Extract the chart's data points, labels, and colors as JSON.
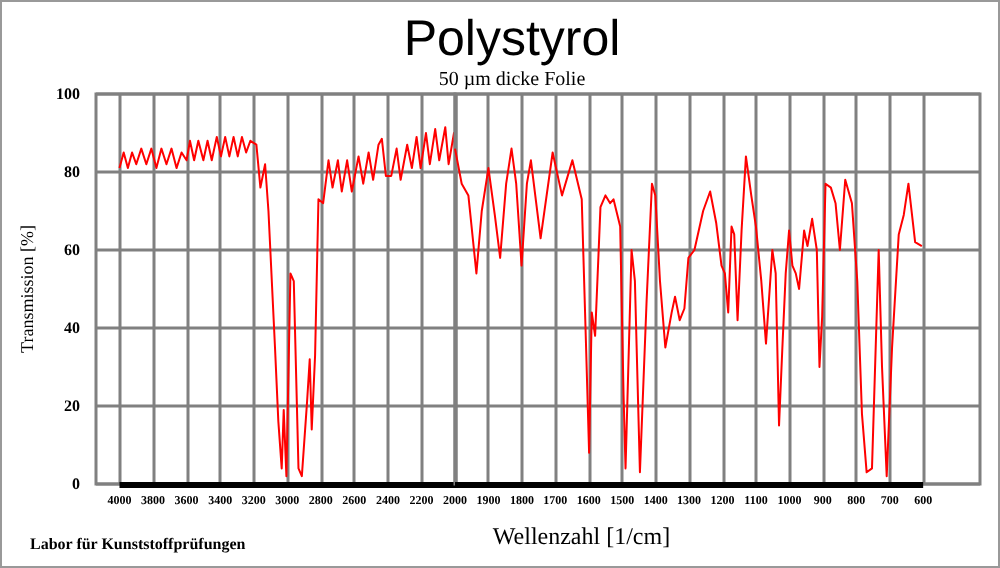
{
  "chart_data": [
    {
      "type": "line",
      "title": "Polystyrol",
      "ylabel": "Transmission [%]",
      "annotations": [
        "Labor für Kunststoffprüfungen"
      ],
      "xlim": [
        4140,
        2000
      ],
      "xticks": [
        4000,
        3800,
        3600,
        3400,
        3200,
        3000,
        2800,
        2600,
        2400,
        2200,
        2000
      ],
      "ylim": [
        0,
        100
      ],
      "yticks": [
        0,
        20,
        40,
        60,
        80,
        100
      ],
      "grid": true,
      "marker": "none",
      "line_style": "solid",
      "series": [
        {
          "color": "#ff0000",
          "x": [
            4000,
            3975,
            3950,
            3925,
            3900,
            3870,
            3840,
            3810,
            3780,
            3750,
            3720,
            3690,
            3660,
            3630,
            3600,
            3580,
            3555,
            3530,
            3500,
            3475,
            3450,
            3420,
            3395,
            3370,
            3345,
            3320,
            3295,
            3270,
            3245,
            3220,
            3184,
            3160,
            3132,
            3112,
            3073,
            3053,
            3033,
            3021,
            3005,
            2981,
            2961,
            2933,
            2913,
            2882,
            2866,
            2854,
            2834,
            2814,
            2786,
            2754,
            2730,
            2698,
            2675,
            2643,
            2615,
            2575,
            2547,
            2515,
            2488,
            2456,
            2436,
            2412,
            2380,
            2348,
            2324,
            2285,
            2257,
            2229,
            2205,
            2173,
            2150,
            2118,
            2094,
            2058,
            2038,
            2006,
            2000
          ],
          "values": [
            81,
            85,
            81,
            85,
            82,
            86,
            82,
            86,
            81,
            86,
            82,
            86,
            81,
            85,
            83,
            88,
            83,
            88,
            83,
            88,
            83,
            89,
            84,
            89,
            84,
            89,
            84,
            89,
            85,
            88,
            87,
            76,
            82,
            70,
            35,
            16,
            4,
            19,
            2,
            54,
            52,
            4,
            2,
            21,
            32,
            14,
            33,
            73,
            72,
            83,
            76,
            83,
            75,
            83,
            75,
            84,
            77,
            85,
            78,
            87,
            88.5,
            79,
            79,
            86,
            78,
            87,
            81,
            89,
            81,
            90,
            82,
            91,
            83,
            91.5,
            82,
            90,
            86
          ]
        }
      ]
    },
    {
      "type": "line",
      "subtitle": "50 µm dicke Folie",
      "xlabel": "Wellenzahl [1/cm]",
      "tick_labels": "x",
      "xlim": [
        2000,
        430
      ],
      "xticks": [
        {
          "value": 2000,
          "label": null
        },
        1900,
        1800,
        1700,
        1600,
        1500,
        1400,
        1300,
        1200,
        1100,
        1000,
        900,
        800,
        700,
        600
      ],
      "ylim": [
        0,
        100
      ],
      "yticks": [
        0,
        20,
        40,
        60,
        80,
        100
      ],
      "grid": true,
      "marker": "none",
      "line_style": "solid",
      "series": [
        {
          "color": "#ff0000",
          "x": [
            2000,
            1980,
            1960,
            1936,
            1920,
            1900,
            1881,
            1865,
            1847,
            1831,
            1817,
            1801,
            1785,
            1773,
            1744,
            1708,
            1680,
            1649,
            1621,
            1609,
            1599,
            1591,
            1581,
            1565,
            1550,
            1536,
            1526,
            1506,
            1496,
            1490,
            1472,
            1462,
            1447,
            1427,
            1411,
            1401,
            1387,
            1371,
            1352,
            1342,
            1328,
            1314,
            1302,
            1284,
            1258,
            1237,
            1219,
            1203,
            1193,
            1183,
            1173,
            1165,
            1155,
            1143,
            1130,
            1114,
            1100,
            1084,
            1070,
            1051,
            1041,
            1031,
            1021,
            1011,
            1001,
            991,
            981,
            971,
            956,
            946,
            932,
            918,
            910,
            902,
            892,
            876,
            862,
            849,
            833,
            813,
            797,
            783,
            769,
            753,
            733,
            723,
            709,
            693,
            673,
            658,
            644,
            624,
            604
          ],
          "values": [
            86,
            77,
            74,
            54,
            70,
            81,
            69,
            58,
            77,
            86,
            77,
            56,
            77,
            83,
            63,
            85,
            74,
            83,
            73,
            38,
            8,
            44,
            38,
            71,
            74,
            72,
            73,
            66,
            23,
            4,
            60,
            52,
            3,
            47,
            77,
            74,
            52,
            35,
            44,
            48,
            42,
            45,
            58,
            60,
            70,
            75,
            67,
            56,
            54,
            44,
            66,
            64,
            42,
            65,
            84,
            74,
            66,
            52,
            36,
            60,
            54,
            15,
            35,
            54,
            65,
            56,
            54,
            50,
            65,
            61,
            68,
            60,
            30,
            43,
            77,
            76,
            72,
            60,
            78,
            72,
            52,
            18,
            3,
            4,
            60,
            30,
            2,
            35,
            64,
            69,
            77,
            62,
            61
          ]
        }
      ]
    }
  ]
}
